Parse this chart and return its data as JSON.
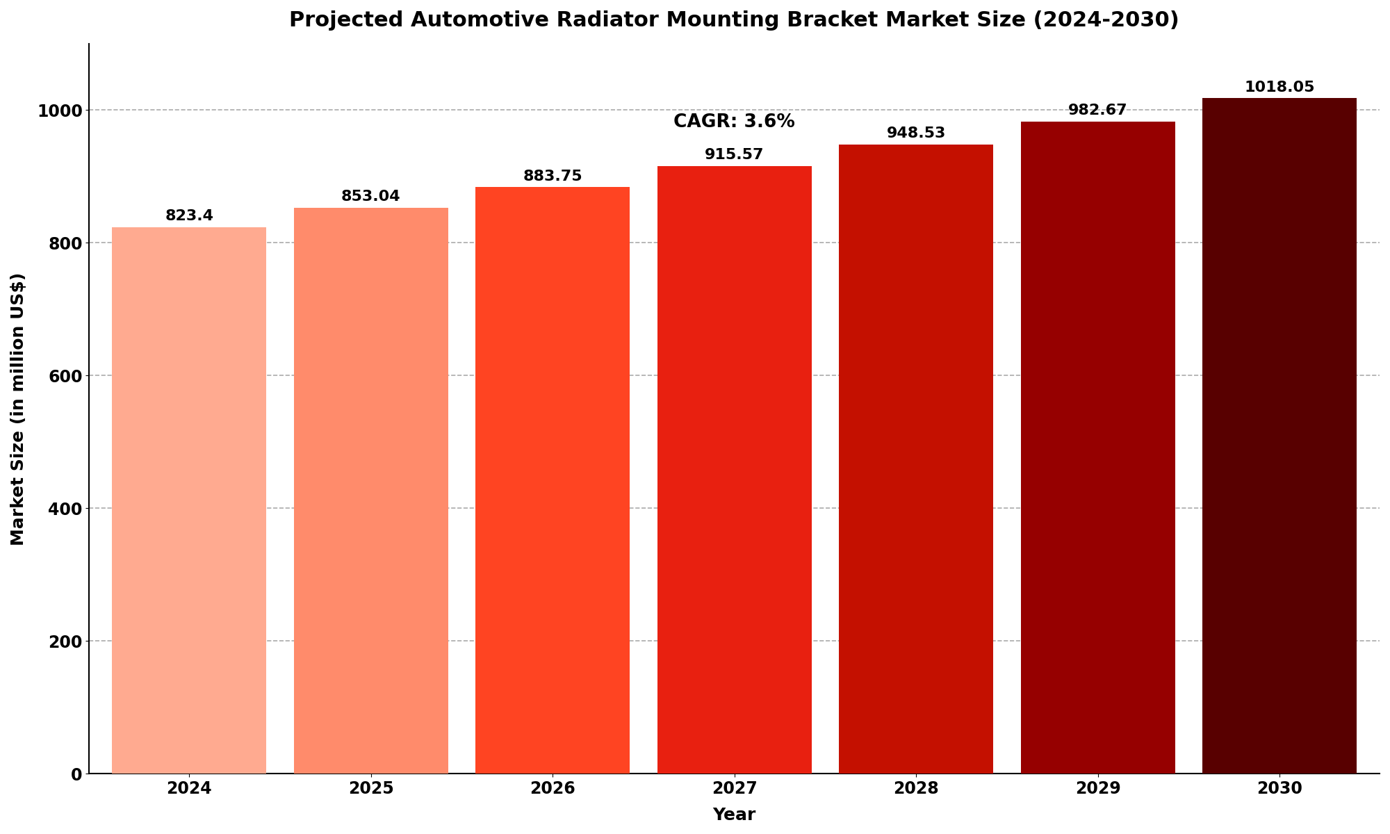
{
  "title": "Projected Automotive Radiator Mounting Bracket Market Size (2024-2030)",
  "xlabel": "Year",
  "ylabel": "Market Size (in million US$)",
  "years": [
    2024,
    2025,
    2026,
    2027,
    2028,
    2029,
    2030
  ],
  "values": [
    823.4,
    853.04,
    883.75,
    915.57,
    948.53,
    982.67,
    1018.05
  ],
  "colors": [
    "#FFAA90",
    "#FF8B6B",
    "#FF4422",
    "#E82010",
    "#C41000",
    "#960000",
    "#580000"
  ],
  "cagr_text": "CAGR: 3.6%",
  "cagr_bar_index": 3,
  "ylim": [
    0,
    1100
  ],
  "yticks": [
    0,
    200,
    400,
    600,
    800,
    1000
  ],
  "title_fontsize": 22,
  "label_fontsize": 18,
  "tick_fontsize": 17,
  "value_fontsize": 16,
  "cagr_fontsize": 19,
  "background_color": "#ffffff",
  "grid_color": "#aaaaaa",
  "bar_width": 0.85
}
